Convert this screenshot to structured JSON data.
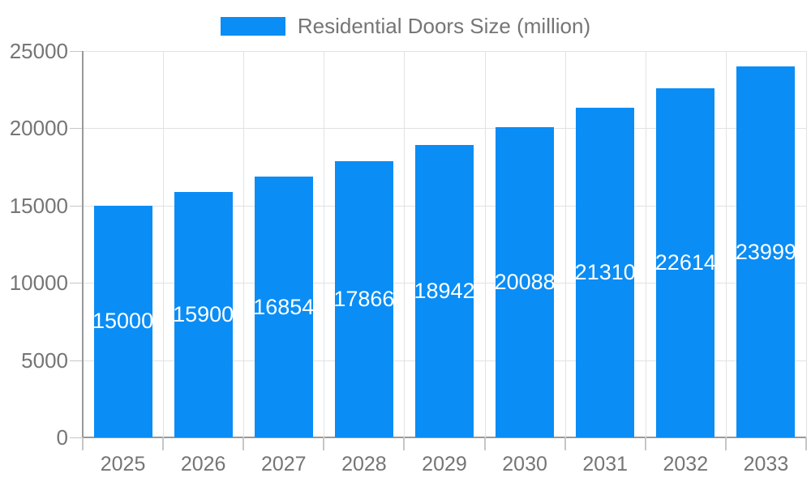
{
  "chart_data": {
    "type": "bar",
    "title": "Residential Doors Size (million)",
    "legend_position": "top",
    "categories": [
      "2025",
      "2026",
      "2027",
      "2028",
      "2029",
      "2030",
      "2031",
      "2032",
      "2033"
    ],
    "series": [
      {
        "name": "Residential Doors Size (million)",
        "values": [
          15000,
          15900,
          16854,
          17866,
          18942,
          20088,
          21310,
          22614,
          23999
        ]
      }
    ],
    "xlabel": "",
    "ylabel": "",
    "ylim": [
      0,
      25000
    ],
    "yticks": [
      0,
      5000,
      10000,
      15000,
      20000,
      25000
    ],
    "grid": true,
    "bar_value_labels_shown": true,
    "colors": {
      "bar": "#0a8df5",
      "value_label": "#ffffff",
      "axis_text": "#757575",
      "gridline": "#e2e2e2",
      "axis_line": "#999999",
      "tick": "#c6c6c6",
      "background": "#ffffff"
    }
  }
}
